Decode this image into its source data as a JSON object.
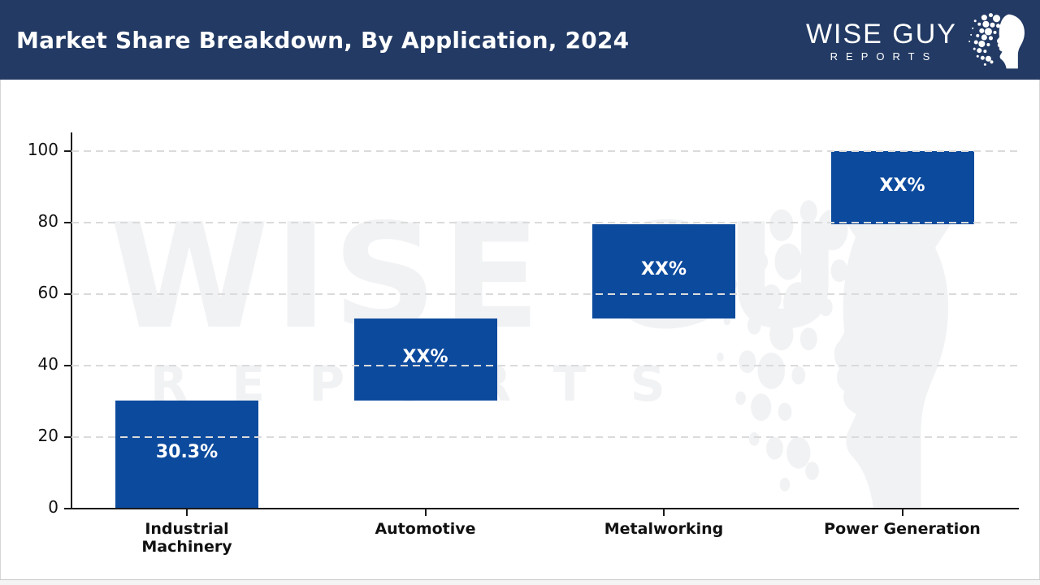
{
  "header": {
    "title": "Market Share Breakdown, By Application, 2024",
    "brand": {
      "name": "WISE GUY",
      "sub": "REPORTS"
    }
  },
  "watermark": {
    "line1": "WISE GUY",
    "line2": "REPORTS"
  },
  "icons": {
    "brand_head": "head-profile-dots-icon",
    "watermark_head": "head-profile-dots-icon"
  },
  "chart_data": {
    "type": "bar",
    "subtype": "waterfall",
    "title": "Market Share Breakdown, By Application, 2024",
    "categories": [
      "Industrial Machinery",
      "Automotive",
      "Metalworking",
      "Power Generation"
    ],
    "segments": [
      {
        "category": "Industrial Machinery",
        "start": 0,
        "end": 30.3,
        "label": "30.3%"
      },
      {
        "category": "Automotive",
        "start": 30.3,
        "end": 53.2,
        "label": "XX%"
      },
      {
        "category": "Metalworking",
        "start": 53.2,
        "end": 79.5,
        "label": "XX%"
      },
      {
        "category": "Power Generation",
        "start": 79.5,
        "end": 100,
        "label": "XX%"
      }
    ],
    "yticks": [
      0,
      20,
      40,
      60,
      80,
      100
    ],
    "ylim": [
      0,
      105
    ],
    "xlabel": "",
    "ylabel": "",
    "grid": "horizontal-dashed",
    "legend": false,
    "bar_color": "#0C4A9D",
    "bar_label_color": "#FFFFFF"
  },
  "colors": {
    "header_bg": "#223A64",
    "bar": "#0C4A9D",
    "axis": "#1A1A1A",
    "tick_text": "#111111",
    "grid": "#DBDBDB",
    "watermark": "#F1F2F4",
    "page_bg": "#FFFFFF",
    "border": "#D6D6D6"
  }
}
